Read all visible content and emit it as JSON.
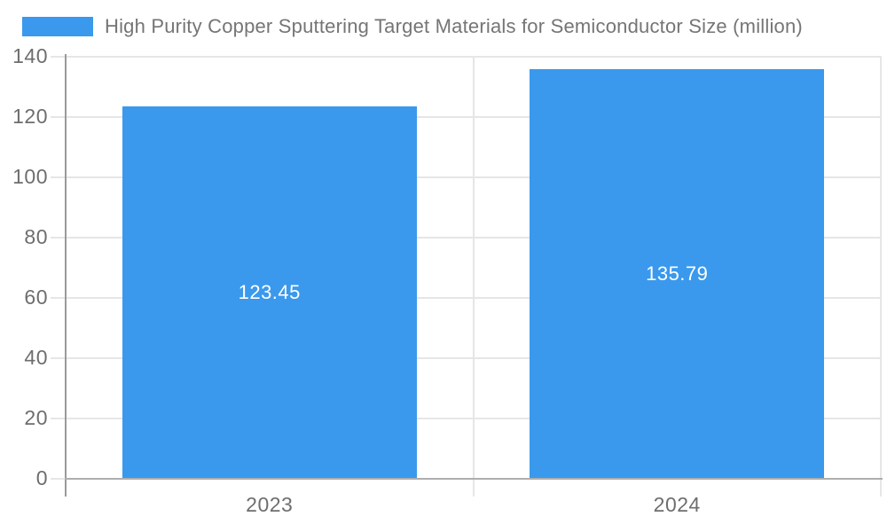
{
  "legend": {
    "label": "High Purity Copper Sputtering Target Materials for Semiconductor Size (million)"
  },
  "chart_data": {
    "type": "bar",
    "title": "High Purity Copper Sputtering Target Materials for Semiconductor Size (million)",
    "categories": [
      "2023",
      "2024"
    ],
    "values": [
      123.45,
      135.79
    ],
    "value_labels": [
      "123.45",
      "135.79"
    ],
    "yticks": [
      0,
      20,
      40,
      60,
      80,
      100,
      120,
      140
    ],
    "ylim": [
      0,
      140
    ],
    "xlabel": "",
    "ylabel": "",
    "grid": true,
    "legend_position": "top-left",
    "colors": {
      "bar": "#3a99ec",
      "value_label": "#ffffff",
      "title_text": "#757575",
      "axis_text": "#6e6e6e",
      "grid_line": "#e6e6e6",
      "y_axis_line": "#9a9a9a",
      "x_axis_line": "#aeaeae",
      "background": "#ffffff"
    }
  }
}
